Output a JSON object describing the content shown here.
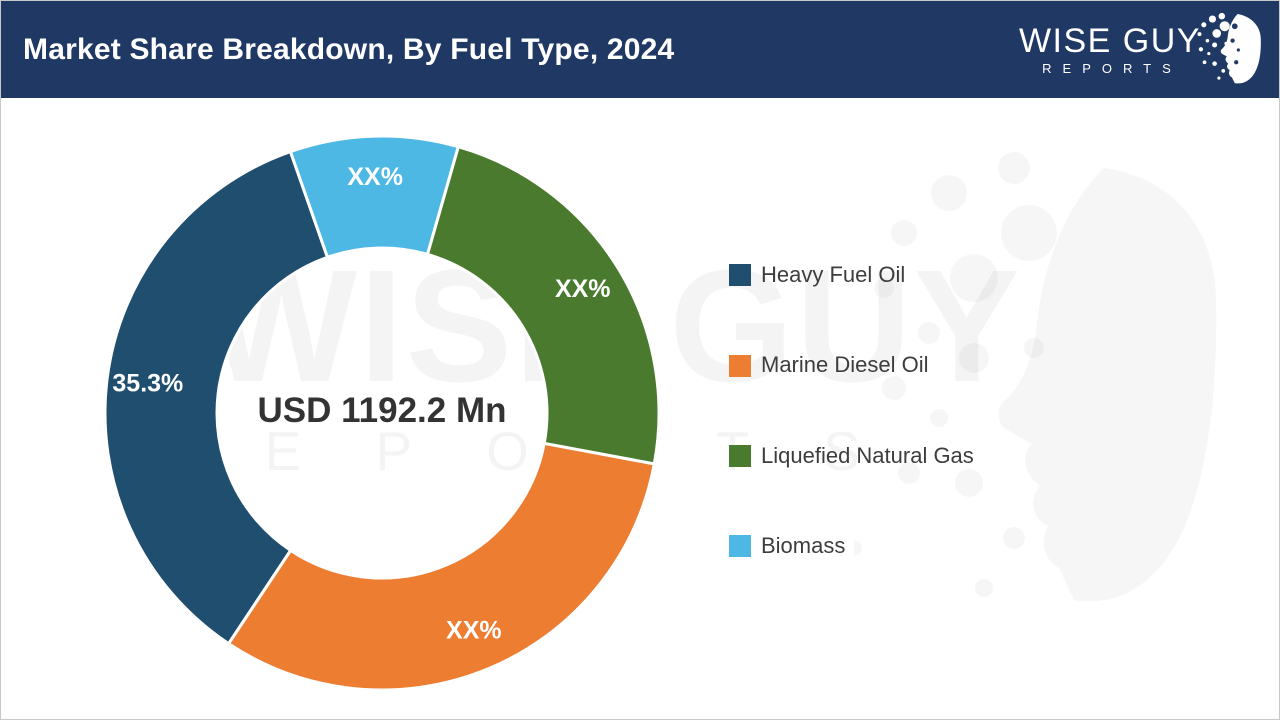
{
  "header": {
    "title": "Market Share Breakdown, By Fuel Type, 2024",
    "bg_color": "#1F3864",
    "logo": {
      "line1": "WISE GUY",
      "line2": "REPORTS"
    }
  },
  "watermark": {
    "line1": "WISE GUY",
    "line2": "REPORTS"
  },
  "chart_data": {
    "type": "pie",
    "subtype": "donut",
    "title": "Market Share Breakdown, By Fuel Type, 2024",
    "center_label": "USD 1192.2 Mn",
    "legend_position": "right",
    "start_angle_deg_from_top": -19.3,
    "direction": "counterclockwise",
    "segments": [
      {
        "name": "Heavy Fuel Oil",
        "value_pct": 35.3,
        "label": "35.3%",
        "color": "#1F4E6E"
      },
      {
        "name": "Marine Diesel Oil",
        "value_pct": 31.4,
        "label": "XX%",
        "color": "#ED7D31"
      },
      {
        "name": "Liquefied Natural Gas",
        "value_pct": 23.5,
        "label": "XX%",
        "color": "#4A7A2E"
      },
      {
        "name": "Biomass",
        "value_pct": 9.8,
        "label": "XX%",
        "color": "#4DB8E4"
      }
    ],
    "colors": {
      "header_bg": "#1F3864",
      "center_text": "#333333",
      "legend_text": "#3d3d3d",
      "segment_label_text": "#ffffff"
    }
  }
}
